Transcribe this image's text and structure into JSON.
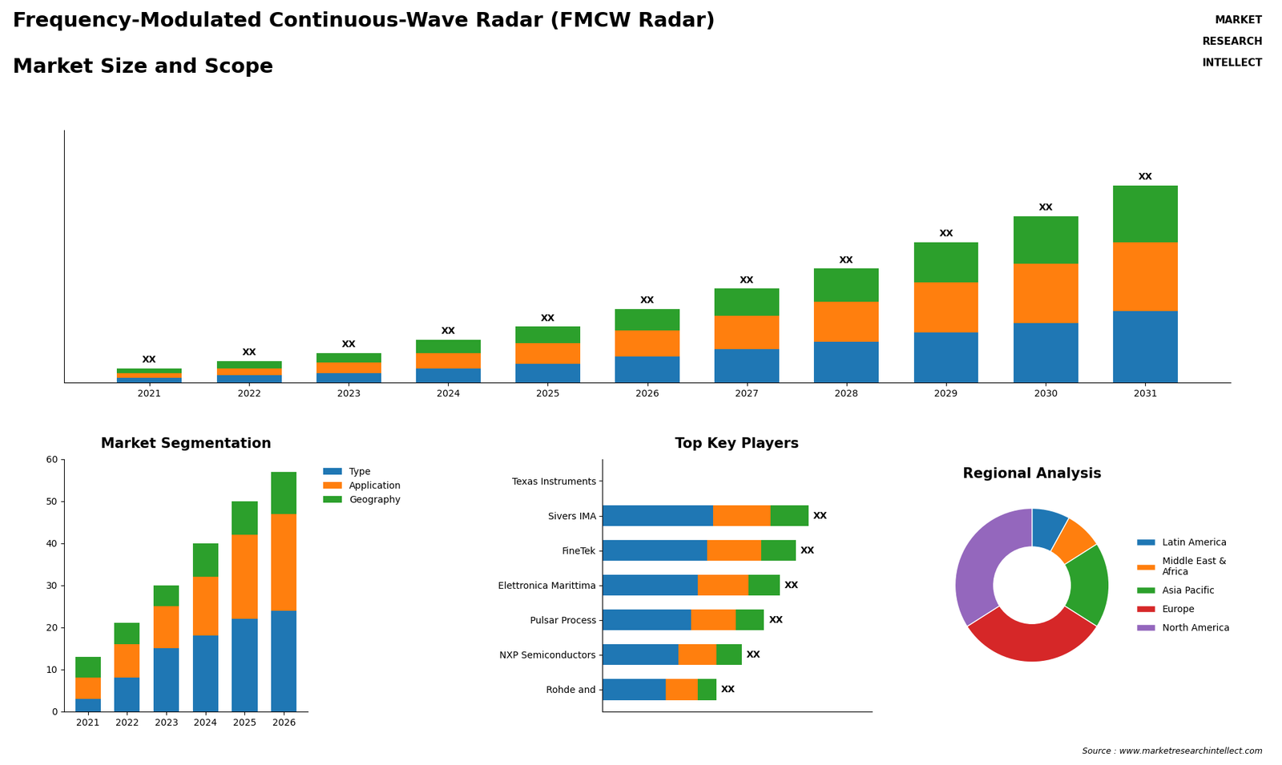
{
  "chart_data": [
    {
      "type": "bar",
      "stacked": true,
      "title": "Frequency-Modulated Continuous-Wave Radar (FMCW Radar)",
      "subtitle": "Market Size and Scope",
      "annotations": [
        "MARKET",
        "RESEARCH",
        "INTELLECT",
        "Source : www.marketresearchintellect.com"
      ],
      "categories": [
        "2021",
        "2022",
        "2023",
        "2024",
        "2025",
        "2026",
        "2027",
        "2028",
        "2029",
        "2030",
        "2031"
      ],
      "series": [
        {
          "values": [
            2,
            3,
            4,
            6,
            8,
            11,
            14,
            17,
            21,
            25,
            30
          ]
        },
        {
          "values": [
            2,
            3,
            4.5,
            6.5,
            8.5,
            11,
            14,
            17,
            21,
            25,
            29
          ]
        },
        {
          "values": [
            2,
            3,
            4,
            5.5,
            7,
            9,
            11.5,
            14,
            17,
            20,
            24
          ]
        }
      ],
      "value_labels": [
        "XX",
        "XX",
        "XX",
        "XX",
        "XX",
        "XX",
        "XX",
        "XX",
        "XX",
        "XX",
        "XX"
      ],
      "ylim": [
        0,
        106.24
      ],
      "tick_labels": "x"
    },
    {
      "type": "bar",
      "stacked": true,
      "title": "Market Segmentation",
      "categories": [
        "2021",
        "2022",
        "2023",
        "2024",
        "2025",
        "2026"
      ],
      "series": [
        {
          "name": "Type",
          "values": [
            3,
            8,
            15,
            18,
            22,
            24
          ]
        },
        {
          "name": "Application",
          "values": [
            5,
            8,
            10,
            14,
            20,
            23
          ]
        },
        {
          "name": "Geography",
          "values": [
            5,
            5,
            5,
            8,
            8,
            10
          ]
        }
      ],
      "ylim": [
        0,
        60
      ],
      "yticks": [
        0,
        10,
        20,
        30,
        40,
        50,
        60
      ],
      "legend": "upper left"
    },
    {
      "type": "bar",
      "stacked": true,
      "orientation": "horizontal",
      "title": "Top Key Players",
      "categories": [
        "Texas Instruments",
        "Sivers IMA",
        "FineTek",
        "Elettronica Marittima",
        "Pulsar Process",
        "NXP Semiconductors",
        "Rohde and"
      ],
      "series": [
        {
          "values": [
            0,
            3.5,
            3.3,
            3.0,
            2.8,
            2.4,
            2.0
          ]
        },
        {
          "values": [
            0,
            1.8,
            1.7,
            1.6,
            1.4,
            1.2,
            1.0
          ]
        },
        {
          "values": [
            0,
            1.2,
            1.1,
            1.0,
            0.9,
            0.8,
            0.6
          ]
        }
      ],
      "value_labels": [
        null,
        "XX",
        "XX",
        "XX",
        "XX",
        "XX",
        "XX"
      ],
      "xlim": [
        0,
        8.5
      ],
      "tick_labels": "y"
    },
    {
      "type": "pie",
      "title": "Regional Analysis",
      "categories": [
        "Latin America",
        "Middle East &\nAfrica",
        "Asia Pacific",
        "Europe",
        "North America"
      ],
      "values": [
        8,
        8,
        18,
        32,
        34
      ],
      "legend": "center left"
    }
  ]
}
